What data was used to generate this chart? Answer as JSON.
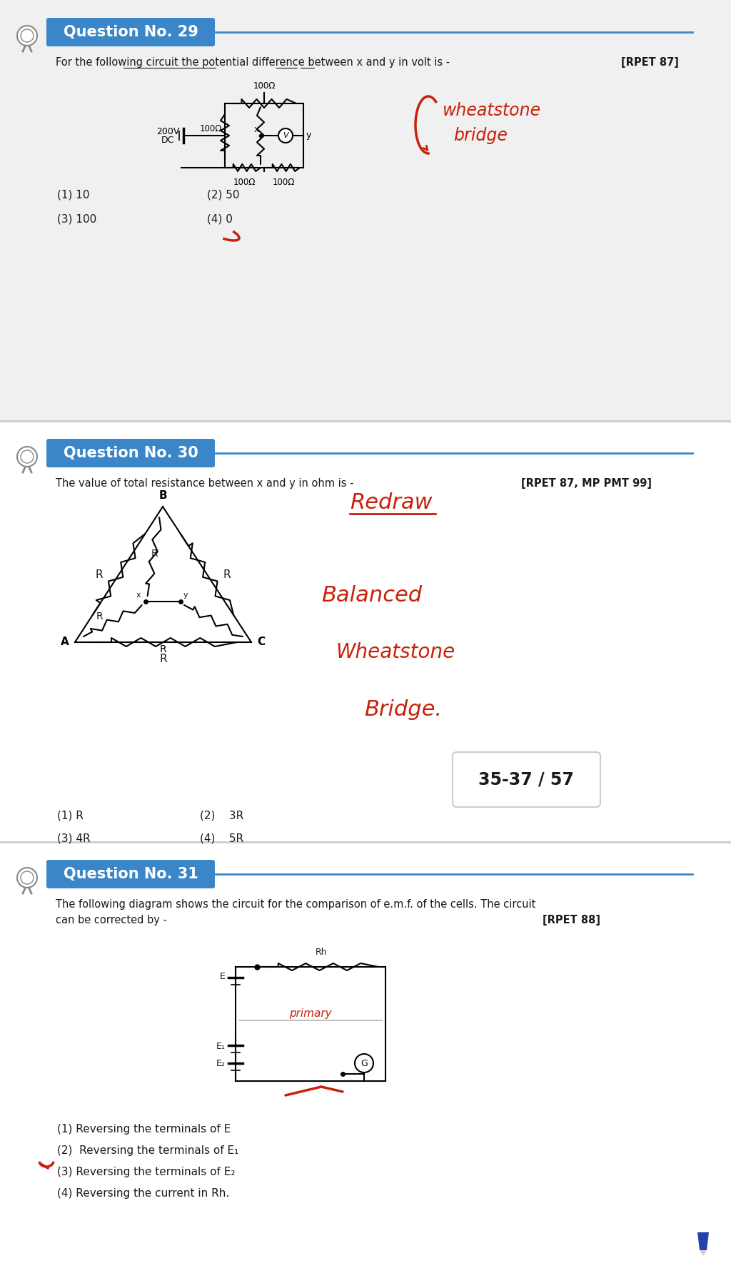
{
  "bg_color": "#f0f0f0",
  "white": "#ffffff",
  "blue_header": "#3a86c8",
  "q29_title": "Question No. 29",
  "q29_question": "For the following circuit the potential difference between x and y in volt is -",
  "q29_ref": "[RPET 87]",
  "q29_opt1": "(1) 10",
  "q29_opt2": "(2) 50",
  "q29_opt3": "(3) 100",
  "q29_opt4": "(4) 0",
  "q29_hw1": "wheatstone",
  "q29_hw2": "bridge",
  "q30_title": "Question No. 30",
  "q30_question": "The value of total resistance between x and y in ohm is -",
  "q30_ref": "[RPET 87, MP PMT 99]",
  "q30_opt1": "(1) R",
  "q30_opt2": "(2)    3R",
  "q30_opt3": "(3) 4R",
  "q30_opt4": "(4)    5R",
  "q30_hw1": "Redraw",
  "q30_hw2": "Balanced",
  "q30_hw3": "Wheatstone",
  "q30_hw4": "Bridge.",
  "q30_page": "35-37 / 57",
  "q31_title": "Question No. 31",
  "q31_line1": "The following diagram shows the circuit for the comparison of e.m.f. of the cells. The circuit",
  "q31_line2": "can be corrected by -",
  "q31_ref": "[RPET 88]",
  "q31_opt1": "(1) Reversing the terminals of E",
  "q31_opt2": "(2)  Reversing the terminals of E₁",
  "q31_opt3": "(3) Reversing the terminals of E₂",
  "q31_opt4": "(4) Reversing the current in Rh.",
  "q31_primary": "primary",
  "red": "#c8210a",
  "black": "#1a1a1a",
  "gray": "#888888",
  "blue_line": "#3a86c8",
  "section_div": "#cccccc"
}
